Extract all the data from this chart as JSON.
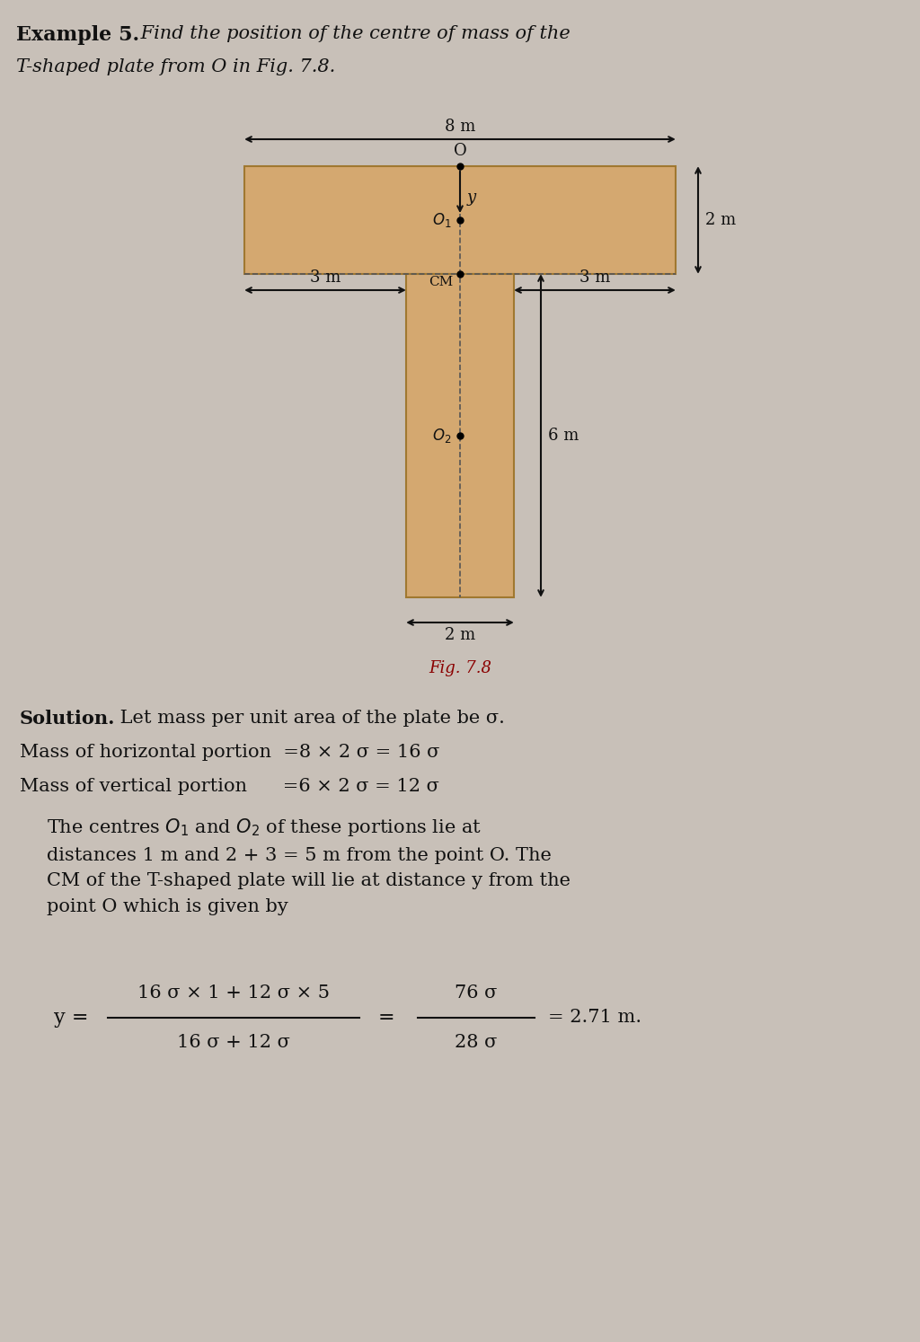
{
  "bg_color": "#c8c0b8",
  "page_color": "#e8e0d8",
  "plate_color": "#d4a870",
  "plate_edge_color": "#a07830",
  "text_color": "#111111",
  "red_color": "#8B0000",
  "dashed_color": "#555555",
  "title_bold": "Example 5.",
  "title_italic_line1": " Find the position of the centre of mass of the",
  "title_italic_line2": "T-shaped plate from O in Fig. 7.8.",
  "fig_caption": "Fig. 7.8",
  "solution_bold": "Solution.",
  "sol_line1": " Let mass per unit area of the plate be σ.",
  "sol_line2": "Mass of horizontal portion  =8 × 2 σ = 16 σ",
  "sol_line3": "Mass of vertical portion      =6 × 2 σ = 12 σ",
  "sol_para": "   The centres $O_1$ and $O_2$ of these portions lie at\ndistances 1 m and 2 + 3 = 5 m from the point O. The\nCM of the T-shaped plate will lie at distance y from the\npoint O which is given by",
  "frac_num": "16 σ × 1 + 12 σ × 5",
  "frac_den": "16 σ + 12 σ",
  "frac2_num": "76 σ",
  "frac2_den": "28 σ",
  "frac_result": "= 2.71 m."
}
